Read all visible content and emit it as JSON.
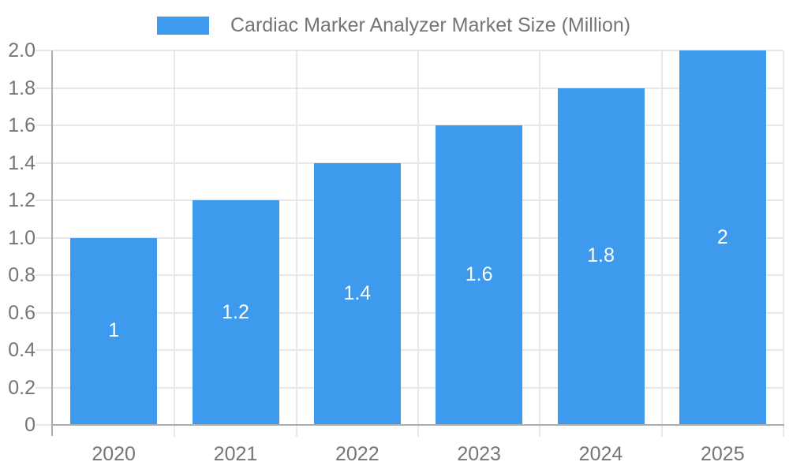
{
  "legend": {
    "label": "Cardiac Marker Analyzer Market Size (Million)"
  },
  "colors": {
    "bar": "#3D9AEC",
    "bar_label": "#FFFFFF",
    "axis_text": "#757575",
    "axis_line": "#ACACAC",
    "gridline": "#E8E8E8",
    "background": "#FFFFFF"
  },
  "chart_data": {
    "type": "bar",
    "title": "Cardiac Marker Analyzer Market Size (Million)",
    "legend_position": "top",
    "grid": true,
    "categories": [
      "2020",
      "2021",
      "2022",
      "2023",
      "2024",
      "2025"
    ],
    "values": [
      1,
      1.2,
      1.4,
      1.6,
      1.8,
      2
    ],
    "bar_labels": [
      "1",
      "1.2",
      "1.4",
      "1.6",
      "1.8",
      "2"
    ],
    "xlabel": "",
    "ylabel": "",
    "ylim": [
      0,
      2
    ],
    "yticks": [
      {
        "value": 0,
        "label": "0"
      },
      {
        "value": 0.2,
        "label": "0.2"
      },
      {
        "value": 0.4,
        "label": "0.4"
      },
      {
        "value": 0.6,
        "label": "0.6"
      },
      {
        "value": 0.8,
        "label": "0.8"
      },
      {
        "value": 1,
        "label": "1.0"
      },
      {
        "value": 1.2,
        "label": "1.2"
      },
      {
        "value": 1.4,
        "label": "1.4"
      },
      {
        "value": 1.6,
        "label": "1.6"
      },
      {
        "value": 1.8,
        "label": "1.8"
      },
      {
        "value": 2,
        "label": "2.0"
      }
    ]
  }
}
